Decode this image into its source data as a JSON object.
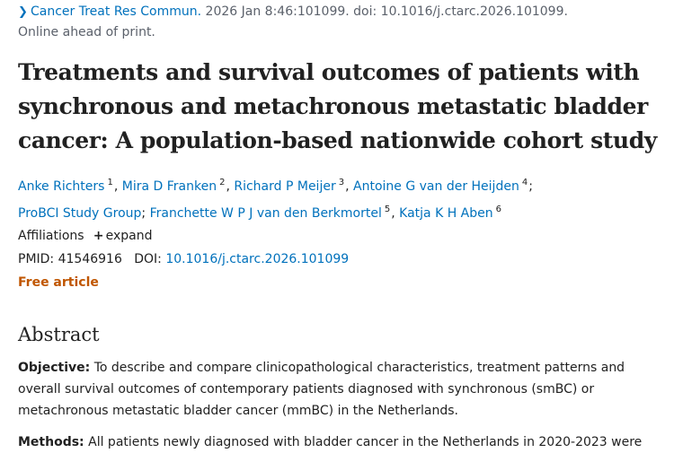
{
  "citation": {
    "journal": "Cancer Treat Res Commun.",
    "details": "2026 Jan 8:46:101099. doi: 10.1016/j.ctarc.2026.101099."
  },
  "status": "Online ahead of print.",
  "title": "Treatments and survival outcomes of patients with synchronous and metachronous metastatic bladder cancer: A population-based nationwide cohort study",
  "authors": [
    {
      "name": "Anke Richters",
      "sup": "1"
    },
    {
      "name": "Mira D Franken",
      "sup": "2"
    },
    {
      "name": "Richard P Meijer",
      "sup": "3"
    },
    {
      "name": "Antoine G van der Heijden",
      "sup": "4"
    },
    {
      "name": "ProBCI Study Group",
      "sup": ""
    },
    {
      "name": "Franchette W P J van den Berkmortel",
      "sup": "5"
    },
    {
      "name": "Katja K H Aben",
      "sup": "6"
    }
  ],
  "affiliations": {
    "label": "Affiliations",
    "expand": "expand"
  },
  "ids": {
    "pmid_label": "PMID:",
    "pmid": "41546916",
    "doi_label": "DOI:",
    "doi": "10.1016/j.ctarc.2026.101099"
  },
  "free_article": "Free article",
  "abstract": {
    "heading": "Abstract",
    "objective_label": "Objective:",
    "objective_text": "To describe and compare clinicopathological characteristics, treatment patterns and overall survival outcomes of contemporary patients diagnosed with synchronous (smBC) or metachronous metastatic bladder cancer (mmBC) in the Netherlands.",
    "methods_label": "Methods:",
    "methods_text": "All patients newly diagnosed with bladder cancer in the Netherlands in 2020-2023 were"
  },
  "colors": {
    "link": "#0071bc",
    "accent": "#c05600",
    "text": "#212121"
  },
  "icons": {
    "chevron": "chevron-right-icon",
    "expand": "plus-icon"
  }
}
